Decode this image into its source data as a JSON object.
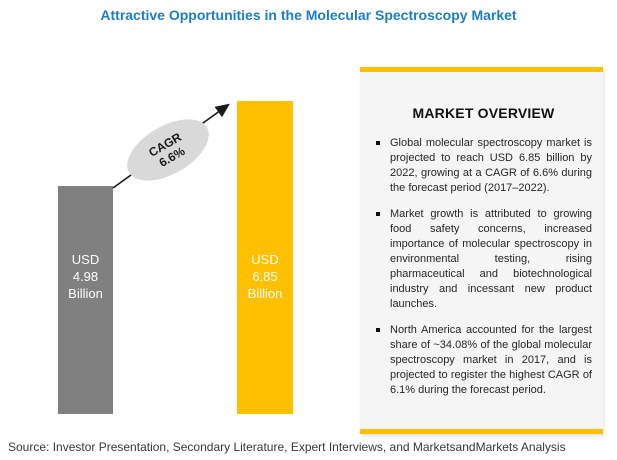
{
  "title": "Attractive Opportunities in the Molecular Spectroscopy Market",
  "chart_data": {
    "type": "bar",
    "labels": [
      "USD 4.98 Billion",
      "USD 6.85 Billion"
    ],
    "values": [
      4.98,
      6.85
    ],
    "unit": "USD Billion",
    "bar_colors": [
      "#808080",
      "#FFC000"
    ],
    "ylim": [
      0,
      7.5
    ],
    "annotation": "CAGR 6.6%",
    "title": "Attractive Opportunities in the Molecular Spectroscopy Market",
    "legend": "none",
    "grid": "off"
  },
  "bars": [
    {
      "line1": "USD 4.98",
      "line2": "Billion"
    },
    {
      "line1": "USD 6.85",
      "line2": "Billion"
    }
  ],
  "cagr": {
    "line1": "CAGR",
    "line2": "6.6%"
  },
  "overview": {
    "heading": "MARKET OVERVIEW",
    "bullets": [
      "Global molecular spectroscopy market is projected to reach USD 6.85 billion by 2022, growing at a CAGR of 6.6% during the forecast period (2017–2022).",
      "Market growth is attributed to growing food safety concerns, increased importance of molecular spectroscopy in environmental testing, rising pharmaceutical and biotechnological industry and incessant new product launches.",
      "North America accounted for the largest share of ~34.08% of the global molecular spectroscopy market in 2017, and is projected to register the highest CAGR of 6.1% during the forecast period."
    ]
  },
  "source": "Source: Investor Presentation, Secondary Literature, Expert Interviews, and MarketsandMarkets Analysis",
  "colors": {
    "title_blue": "#1B7FC3",
    "bar_gray": "#808080",
    "bar_gold": "#FFC000",
    "accent_gold": "#FFC000",
    "box_bg": "#F5F5F5",
    "ellipse_gray": "#D9D9D9",
    "text_dark": "#262626"
  }
}
